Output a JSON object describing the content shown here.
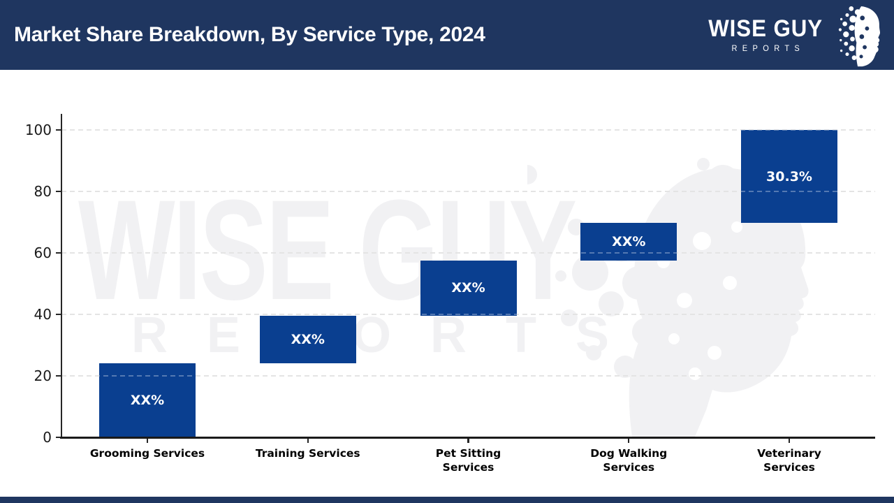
{
  "header": {
    "title": "Market Share Breakdown, By Service Type, 2024",
    "logo": {
      "line1": "WISE GUY",
      "line2": "REPORTS"
    },
    "bg_color": "#1F3660",
    "text_color": "#FFFFFF"
  },
  "watermark": {
    "line1": "WISE GUY",
    "line2": "REPORTS"
  },
  "footer": {
    "bg_color": "#1F3660"
  },
  "chart_data": {
    "type": "bar",
    "subtype": "waterfall-floating-bars",
    "title": "Market Share Breakdown, By Service Type, 2024",
    "xlabel": "",
    "ylabel": "",
    "ylim": [
      0,
      100
    ],
    "yticks": [
      0,
      20,
      40,
      60,
      80,
      100
    ],
    "grid": true,
    "grid_style": "dashed",
    "bar_color": "#0A3F90",
    "categories": [
      "Grooming Services",
      "Training Services",
      "Pet Sitting\nServices",
      "Dog Walking\nServices",
      "Veterinary\nServices"
    ],
    "segments": [
      {
        "category": "Grooming Services",
        "start": 0,
        "end": 24.2,
        "value_label": "XX%"
      },
      {
        "category": "Training Services",
        "start": 24.2,
        "end": 39.5,
        "value_label": "XX%"
      },
      {
        "category": "Pet Sitting Services",
        "start": 39.5,
        "end": 57.6,
        "value_label": "XX%"
      },
      {
        "category": "Dog Walking Services",
        "start": 57.6,
        "end": 69.7,
        "value_label": "XX%"
      },
      {
        "category": "Veterinary Services",
        "start": 69.7,
        "end": 100,
        "value_label": "30.3%"
      }
    ]
  }
}
